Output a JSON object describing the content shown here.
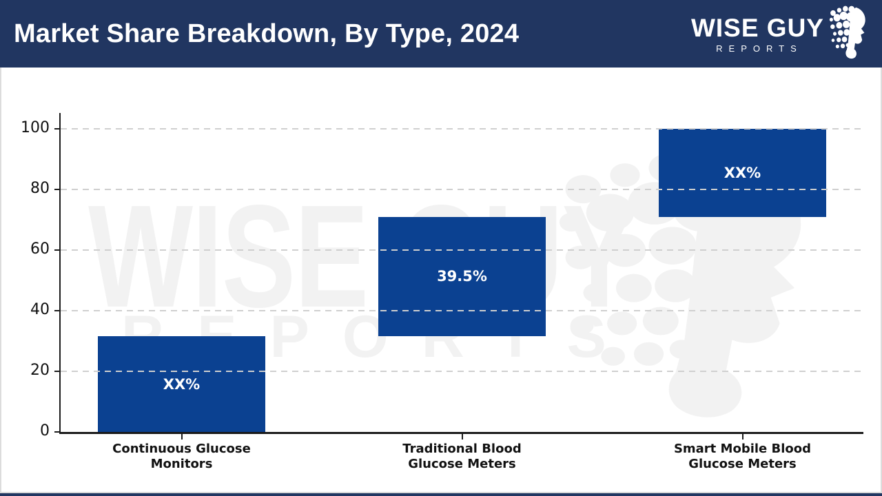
{
  "header": {
    "title": "Market Share Breakdown, By Type, 2024",
    "logo": {
      "line1": "WISE GUY",
      "line2": "REPORTS"
    }
  },
  "watermark": {
    "line1": "WISE GUY",
    "line2": "REPORTS"
  },
  "theme": {
    "header_bg": "#213661",
    "footer_bg": "#213661",
    "bar_color": "#0b4191",
    "gridline_color": "#cfcfcf",
    "axis_color": "#1a1a1a",
    "value_label_color": "#ffffff"
  },
  "chart_data": {
    "type": "bar",
    "subtype": "waterfall-stacked",
    "title": "Market Share Breakdown, By Type, 2024",
    "categories": [
      "Continuous Glucose Monitors",
      "Traditional Blood Glucose Meters",
      "Smart Mobile Blood Glucose Meters"
    ],
    "category_lines": [
      [
        "Continuous Glucose",
        "Monitors"
      ],
      [
        "Traditional Blood",
        "Glucose Meters"
      ],
      [
        "Smart Mobile Blood",
        "Glucose Meters"
      ]
    ],
    "series": [
      {
        "category": "Continuous Glucose Monitors",
        "start": 0,
        "end": 31.5,
        "height": 31.5,
        "value_label": "XX%"
      },
      {
        "category": "Traditional Blood Glucose Meters",
        "start": 31.5,
        "end": 71,
        "height": 39.5,
        "value_label": "39.5%"
      },
      {
        "category": "Smart Mobile Blood Glucose Meters",
        "start": 71,
        "end": 100,
        "height": 29,
        "value_label": "XX%"
      }
    ],
    "yticks": [
      0,
      20,
      40,
      60,
      80,
      100
    ],
    "ylim": [
      0,
      105
    ],
    "xlabel": "",
    "ylabel": "",
    "grid": "horizontal-dashed",
    "legend": "none",
    "bar_color": "#0b4191",
    "label_color": "#ffffff"
  }
}
